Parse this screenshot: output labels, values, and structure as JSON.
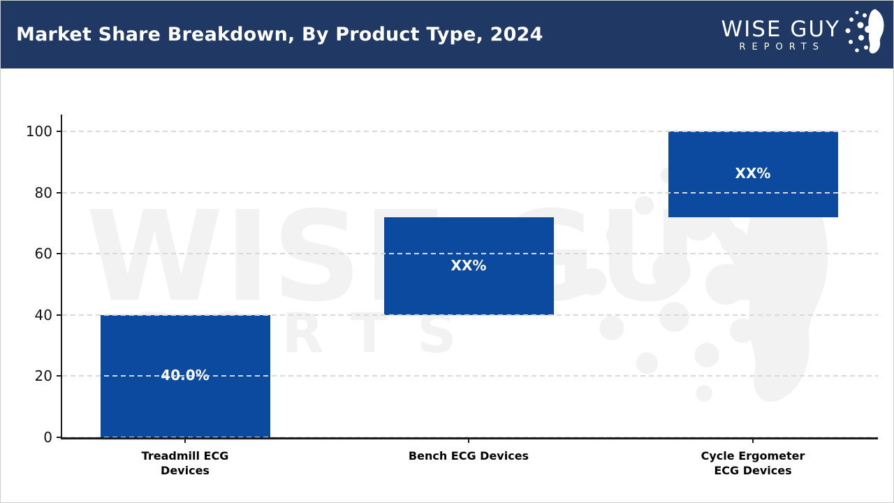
{
  "header": {
    "title": "Market Share Breakdown, By Product Type, 2024",
    "logo": {
      "line1": "WISE GUY",
      "line2": "REPORTS"
    }
  },
  "watermark": {
    "line1": "WISE GUY",
    "line2": "PORTS"
  },
  "colors": {
    "header_bg": "#1f3864",
    "bar": "#0c4aa0",
    "bar_label": "#ffffff",
    "gridline": "#d9d9d9",
    "axis": "#1a1a1a",
    "watermark": "#f2f2f2"
  },
  "chart_data": {
    "type": "bar",
    "subtype": "stacked-waterfall",
    "title": "Market Share Breakdown, By Product Type, 2024",
    "categories": [
      [
        "Treadmill ECG",
        "Devices"
      ],
      [
        "Bench ECG Devices"
      ],
      [
        "Cycle Ergometer",
        "ECG Devices"
      ]
    ],
    "segments": [
      {
        "start": 0,
        "end": 40,
        "value": 40,
        "label": "40.0%"
      },
      {
        "start": 40,
        "end": 72,
        "value": 32,
        "label": "XX%"
      },
      {
        "start": 72,
        "end": 100,
        "value": 28,
        "label": "XX%"
      }
    ],
    "yticks": [
      0,
      20,
      40,
      60,
      80,
      100
    ],
    "ylim": [
      0,
      100
    ],
    "xlabel": "",
    "ylabel": "",
    "grid": "horizontal-dashed",
    "legend": "none"
  }
}
